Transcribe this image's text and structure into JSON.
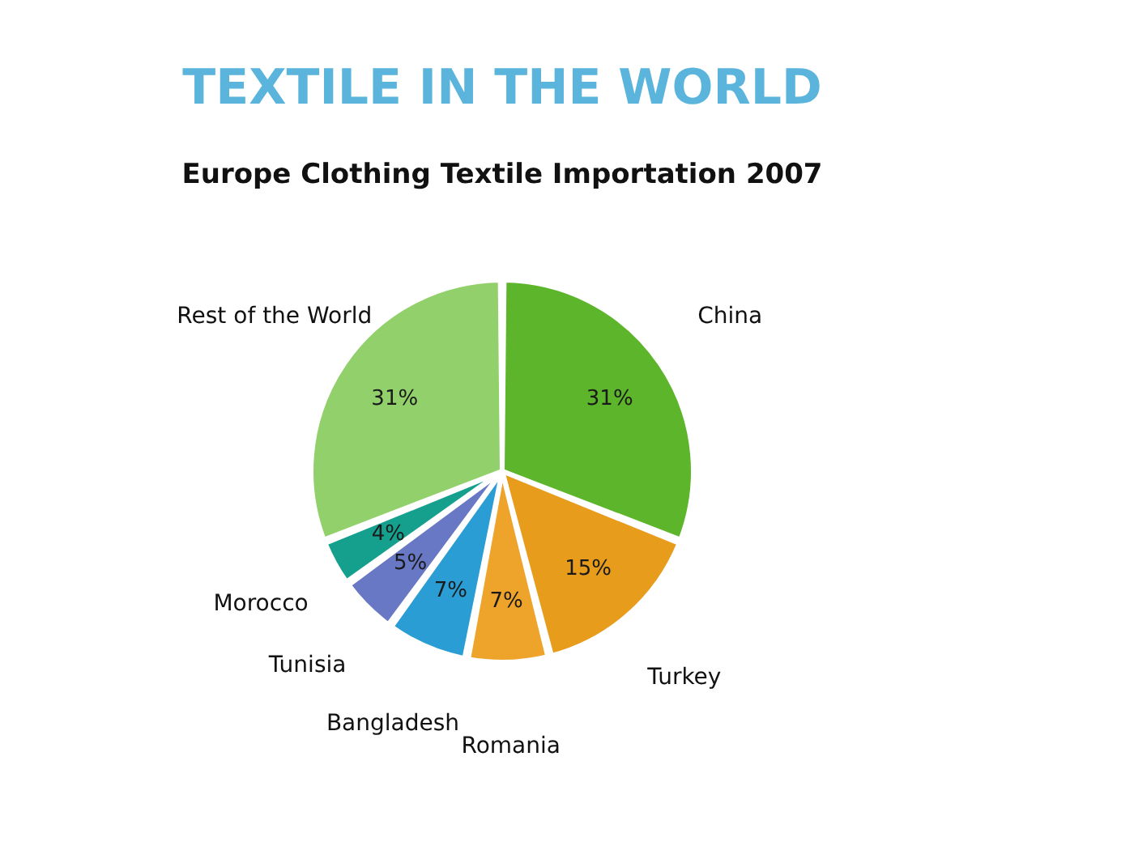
{
  "chart_data": {
    "type": "pie",
    "title": "TEXTILE IN THE WORLD",
    "subtitle": "Europe Clothing Textile Importation 2007",
    "categories": [
      "China",
      "Turkey",
      "Romania",
      "Bangladesh",
      "Tunisia",
      "Morocco",
      "Rest of the World"
    ],
    "values": [
      31,
      15,
      7,
      7,
      5,
      4,
      31
    ],
    "value_labels": [
      "31%",
      "15%",
      "7%",
      "7%",
      "5%",
      "4%",
      "31%"
    ],
    "colors": [
      "#5cb52a",
      "#e89c1c",
      "#eea42a",
      "#2a9ed4",
      "#6878c4",
      "#14a08c",
      "#92d06c"
    ]
  }
}
